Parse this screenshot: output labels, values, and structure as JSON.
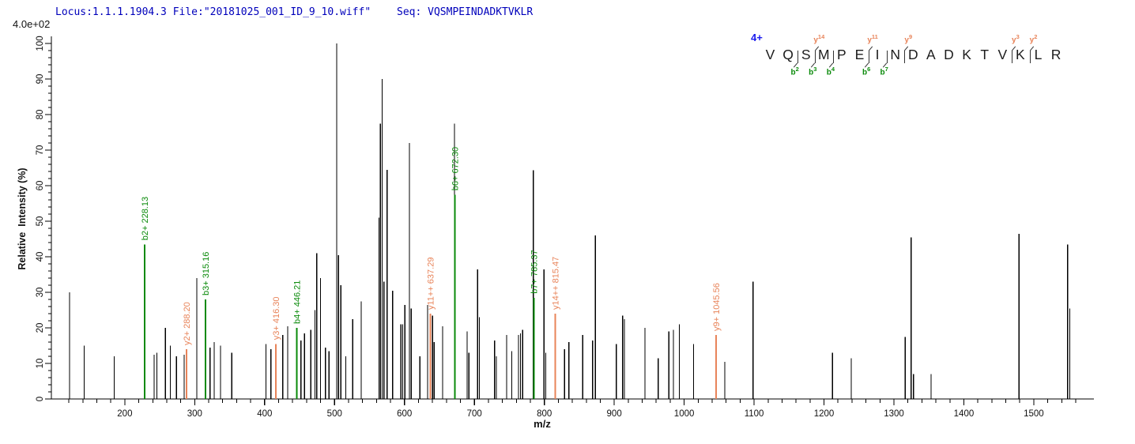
{
  "header": {
    "locus_file": "Locus:1.1.1.1904.3 File:\"20181025_001_ID_9_10.wiff\"",
    "seq_label": "Seq: VQSMPEINDADKTVKLR",
    "scale_factor": "4.0e+02"
  },
  "colors": {
    "header_text": "#0000bb",
    "charge_text": "#1a1aee",
    "b_ion": "#0a8a0a",
    "y_ion": "#e8845a",
    "peak": "#000000",
    "axis": "#000000"
  },
  "sequence_overlay": {
    "charge": "4+",
    "residues": [
      "V",
      "Q",
      "S",
      "M",
      "P",
      "E",
      "I",
      "N",
      "D",
      "A",
      "D",
      "K",
      "T",
      "V",
      "K",
      "L",
      "R"
    ],
    "cuts": [
      {
        "after_index": 1,
        "b": "b2",
        "y": null
      },
      {
        "after_index": 2,
        "b": "b3",
        "y": "y14"
      },
      {
        "after_index": 3,
        "b": "b4",
        "y": null
      },
      {
        "after_index": 5,
        "b": "b6",
        "y": "y11"
      },
      {
        "after_index": 6,
        "b": "b7",
        "y": null
      },
      {
        "after_index": 7,
        "b": null,
        "y": "y9"
      },
      {
        "after_index": 13,
        "b": null,
        "y": "y3"
      },
      {
        "after_index": 14,
        "b": null,
        "y": "y2"
      }
    ]
  },
  "chart_data": {
    "type": "bar",
    "subtype": "mass-spectrum-stick-plot",
    "title": "",
    "xlabel": "m/z",
    "ylabel": "Relative  Intensity (%)",
    "x_range": [
      95,
      1586
    ],
    "ylim": [
      0,
      100
    ],
    "grid": false,
    "x_axis": {
      "major_ticks": [
        200,
        300,
        400,
        500,
        600,
        700,
        800,
        900,
        1000,
        1100,
        1200,
        1300,
        1400,
        1500
      ],
      "minor_from": 100,
      "minor_to": 1560,
      "minor_step": 20
    },
    "y_axis": {
      "major_step": 10,
      "minor_step": 2,
      "major_labels": [
        "0",
        "10",
        "20",
        "30",
        "40",
        "50",
        "60",
        "70",
        "80",
        "90",
        "100"
      ]
    },
    "labeled_fragments": [
      {
        "label": "b2+ 228.13",
        "mz": 228.13,
        "intensity": 43.5,
        "ion": "b"
      },
      {
        "label": "y2+ 288.20",
        "mz": 288.2,
        "intensity": 14.0,
        "ion": "y"
      },
      {
        "label": "b3+ 315.16",
        "mz": 315.16,
        "intensity": 28.0,
        "ion": "b"
      },
      {
        "label": "y3+ 416.30",
        "mz": 416.3,
        "intensity": 15.5,
        "ion": "y"
      },
      {
        "label": "b4+ 446.21",
        "mz": 446.21,
        "intensity": 20.0,
        "ion": "b"
      },
      {
        "label": "y11++ 637.29",
        "mz": 637.29,
        "intensity": 24.0,
        "ion": "y"
      },
      {
        "label": "b6+ 672.30",
        "mz": 672.3,
        "intensity": 57.5,
        "ion": "b"
      },
      {
        "label": "b7+ 785.37",
        "mz": 785.37,
        "intensity": 28.5,
        "ion": "b"
      },
      {
        "label": "y14++ 815.47",
        "mz": 815.47,
        "intensity": 24.0,
        "ion": "y"
      },
      {
        "label": "y9+ 1045.56",
        "mz": 1045.56,
        "intensity": 18.0,
        "ion": "y"
      }
    ],
    "peaks": [
      {
        "mz": 121,
        "i": 30
      },
      {
        "mz": 142,
        "i": 15
      },
      {
        "mz": 185,
        "i": 12
      },
      {
        "mz": 228.13,
        "i": 43.5,
        "ion": "b",
        "label": "b2+ 228.13"
      },
      {
        "mz": 242,
        "i": 12.5
      },
      {
        "mz": 246,
        "i": 13
      },
      {
        "mz": 258,
        "i": 20
      },
      {
        "mz": 265,
        "i": 15
      },
      {
        "mz": 274,
        "i": 12
      },
      {
        "mz": 285,
        "i": 12.5
      },
      {
        "mz": 288.2,
        "i": 14,
        "ion": "y",
        "label": "y2+ 288.20"
      },
      {
        "mz": 303,
        "i": 34
      },
      {
        "mz": 315.16,
        "i": 28,
        "ion": "b",
        "label": "b3+ 315.16"
      },
      {
        "mz": 322,
        "i": 14.5
      },
      {
        "mz": 328,
        "i": 16
      },
      {
        "mz": 337,
        "i": 15
      },
      {
        "mz": 353,
        "i": 13
      },
      {
        "mz": 402,
        "i": 15.5
      },
      {
        "mz": 409,
        "i": 14
      },
      {
        "mz": 416.3,
        "i": 15.5,
        "ion": "y",
        "label": "y3+ 416.30"
      },
      {
        "mz": 426,
        "i": 18
      },
      {
        "mz": 433,
        "i": 20.5
      },
      {
        "mz": 446.21,
        "i": 20,
        "ion": "b",
        "label": "b4+ 446.21"
      },
      {
        "mz": 452,
        "i": 16.5
      },
      {
        "mz": 457,
        "i": 18.5
      },
      {
        "mz": 466,
        "i": 19.5
      },
      {
        "mz": 472,
        "i": 25
      },
      {
        "mz": 474.5,
        "i": 41
      },
      {
        "mz": 480,
        "i": 34
      },
      {
        "mz": 487,
        "i": 14.5
      },
      {
        "mz": 492,
        "i": 13.5
      },
      {
        "mz": 503,
        "i": 100
      },
      {
        "mz": 505.5,
        "i": 40.5
      },
      {
        "mz": 509,
        "i": 32
      },
      {
        "mz": 516,
        "i": 12
      },
      {
        "mz": 526,
        "i": 22.5
      },
      {
        "mz": 538,
        "i": 27.5
      },
      {
        "mz": 563.5,
        "i": 51
      },
      {
        "mz": 565.5,
        "i": 77.5
      },
      {
        "mz": 568,
        "i": 90
      },
      {
        "mz": 570.5,
        "i": 33
      },
      {
        "mz": 575,
        "i": 64.5
      },
      {
        "mz": 583,
        "i": 30.5
      },
      {
        "mz": 595,
        "i": 21
      },
      {
        "mz": 597.5,
        "i": 21
      },
      {
        "mz": 600.5,
        "i": 26.5
      },
      {
        "mz": 607,
        "i": 72
      },
      {
        "mz": 609.5,
        "i": 25.5
      },
      {
        "mz": 622,
        "i": 12
      },
      {
        "mz": 633,
        "i": 26.5
      },
      {
        "mz": 637.29,
        "i": 24,
        "ion": "y",
        "label": "y11++ 637.29"
      },
      {
        "mz": 640,
        "i": 23.5
      },
      {
        "mz": 642.5,
        "i": 16
      },
      {
        "mz": 654.5,
        "i": 20.5
      },
      {
        "mz": 671.4,
        "i": 77.5
      },
      {
        "mz": 672.3,
        "i": 57.5,
        "ion": "b",
        "label": "b6+ 672.30"
      },
      {
        "mz": 689.5,
        "i": 19
      },
      {
        "mz": 692,
        "i": 13
      },
      {
        "mz": 704.5,
        "i": 36.5
      },
      {
        "mz": 707,
        "i": 23
      },
      {
        "mz": 729,
        "i": 16.5
      },
      {
        "mz": 731.5,
        "i": 12
      },
      {
        "mz": 746,
        "i": 18
      },
      {
        "mz": 753.5,
        "i": 13.5
      },
      {
        "mz": 763,
        "i": 18
      },
      {
        "mz": 766,
        "i": 18.5
      },
      {
        "mz": 769,
        "i": 19.5
      },
      {
        "mz": 784.3,
        "i": 64.3
      },
      {
        "mz": 785.37,
        "i": 28.5,
        "ion": "b",
        "label": "b7+ 785.37"
      },
      {
        "mz": 799.5,
        "i": 36.5
      },
      {
        "mz": 802,
        "i": 13
      },
      {
        "mz": 815.47,
        "i": 24,
        "ion": "y",
        "label": "y14++ 815.47"
      },
      {
        "mz": 829,
        "i": 14
      },
      {
        "mz": 835,
        "i": 16
      },
      {
        "mz": 855,
        "i": 18
      },
      {
        "mz": 869,
        "i": 16.5
      },
      {
        "mz": 873,
        "i": 46
      },
      {
        "mz": 903,
        "i": 15.5
      },
      {
        "mz": 912,
        "i": 23.5
      },
      {
        "mz": 914.5,
        "i": 22.5
      },
      {
        "mz": 944,
        "i": 20
      },
      {
        "mz": 963,
        "i": 11.5
      },
      {
        "mz": 978,
        "i": 19
      },
      {
        "mz": 984.5,
        "i": 19.5
      },
      {
        "mz": 993,
        "i": 21
      },
      {
        "mz": 1013.5,
        "i": 15.5
      },
      {
        "mz": 1045.56,
        "i": 18,
        "ion": "y",
        "label": "y9+ 1045.56"
      },
      {
        "mz": 1058,
        "i": 10.5
      },
      {
        "mz": 1098.5,
        "i": 33
      },
      {
        "mz": 1212,
        "i": 13
      },
      {
        "mz": 1239,
        "i": 11.5
      },
      {
        "mz": 1316,
        "i": 17.5
      },
      {
        "mz": 1324.5,
        "i": 45.5
      },
      {
        "mz": 1328,
        "i": 7
      },
      {
        "mz": 1353,
        "i": 7
      },
      {
        "mz": 1479,
        "i": 46.5
      },
      {
        "mz": 1548.5,
        "i": 43.5
      },
      {
        "mz": 1551.5,
        "i": 25.5
      }
    ]
  }
}
